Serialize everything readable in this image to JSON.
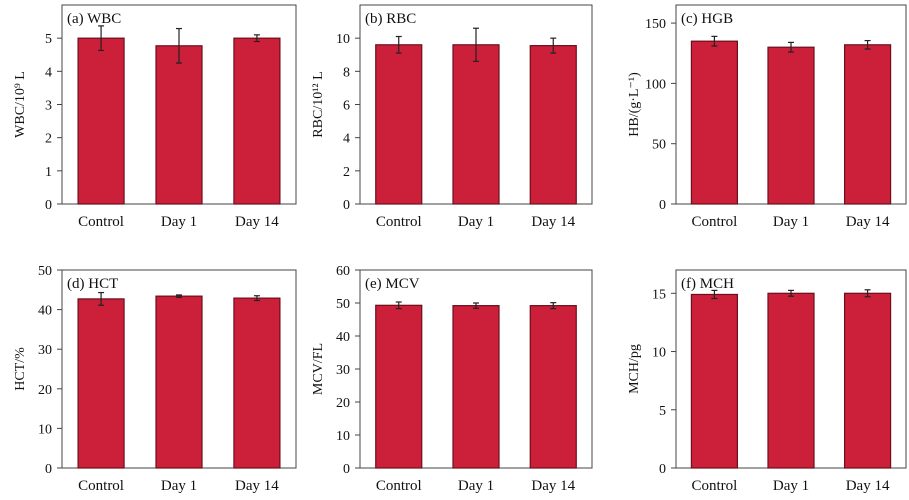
{
  "colors": {
    "bar_fill": "#cc1f3a",
    "bar_stroke": "#6b0f1c",
    "frame": "#444444",
    "error_bar": "#222222"
  },
  "chart_data": [
    {
      "type": "bar",
      "title": "(a) WBC",
      "ylabel": "WBC/10⁹ L",
      "categories": [
        "Control",
        "Day 1",
        "Day 14"
      ],
      "values": [
        5.0,
        4.77,
        5.0
      ],
      "errors": [
        0.37,
        0.52,
        0.1
      ],
      "ylim": [
        0,
        6
      ],
      "yticks": [
        "0",
        "1",
        "2",
        "3",
        "4",
        "5"
      ],
      "ytick_values": [
        0,
        1,
        2,
        3,
        4,
        5
      ],
      "grid": false
    },
    {
      "type": "bar",
      "title": "(b) RBC",
      "ylabel": "RBC/10¹² L",
      "categories": [
        "Control",
        "Day 1",
        "Day 14"
      ],
      "values": [
        9.6,
        9.6,
        9.55
      ],
      "errors": [
        0.5,
        1.0,
        0.45
      ],
      "ylim": [
        0,
        12
      ],
      "yticks": [
        "0",
        "2",
        "4",
        "6",
        "8",
        "10"
      ],
      "ytick_values": [
        0,
        2,
        4,
        6,
        8,
        10
      ],
      "grid": false
    },
    {
      "type": "bar",
      "title": "(c) HGB",
      "ylabel": "HB/(g·L⁻¹)",
      "categories": [
        "Control",
        "Day 1",
        "Day 14"
      ],
      "values": [
        135,
        130,
        132
      ],
      "errors": [
        4,
        4,
        3.5
      ],
      "ylim": [
        0,
        165
      ],
      "yticks": [
        "0",
        "50",
        "100",
        "150"
      ],
      "ytick_values": [
        0,
        50,
        100,
        150
      ],
      "grid": false
    },
    {
      "type": "bar",
      "title": "(d) HCT",
      "ylabel": "HCT/%",
      "categories": [
        "Control",
        "Day 1",
        "Day 14"
      ],
      "values": [
        42.7,
        43.4,
        42.9
      ],
      "errors": [
        1.6,
        0.3,
        0.6
      ],
      "ylim": [
        0,
        50
      ],
      "yticks": [
        "0",
        "10",
        "20",
        "30",
        "40",
        "50"
      ],
      "ytick_values": [
        0,
        10,
        20,
        30,
        40,
        50
      ],
      "grid": false
    },
    {
      "type": "bar",
      "title": "(e) MCV",
      "ylabel": "MCV/FL",
      "categories": [
        "Control",
        "Day 1",
        "Day 14"
      ],
      "values": [
        49.3,
        49.2,
        49.2
      ],
      "errors": [
        1.0,
        0.8,
        0.9
      ],
      "ylim": [
        0,
        60
      ],
      "yticks": [
        "0",
        "10",
        "20",
        "30",
        "40",
        "50",
        "60"
      ],
      "ytick_values": [
        0,
        10,
        20,
        30,
        40,
        50,
        60
      ],
      "grid": false
    },
    {
      "type": "bar",
      "title": "(f) MCH",
      "ylabel": "MCH/pg",
      "categories": [
        "Control",
        "Day 1",
        "Day 14"
      ],
      "values": [
        14.9,
        15.0,
        15.0
      ],
      "errors": [
        0.35,
        0.25,
        0.3
      ],
      "ylim": [
        0,
        17
      ],
      "yticks": [
        "0",
        "5",
        "10",
        "15"
      ],
      "ytick_values": [
        0,
        5,
        10,
        15
      ],
      "grid": false
    }
  ]
}
